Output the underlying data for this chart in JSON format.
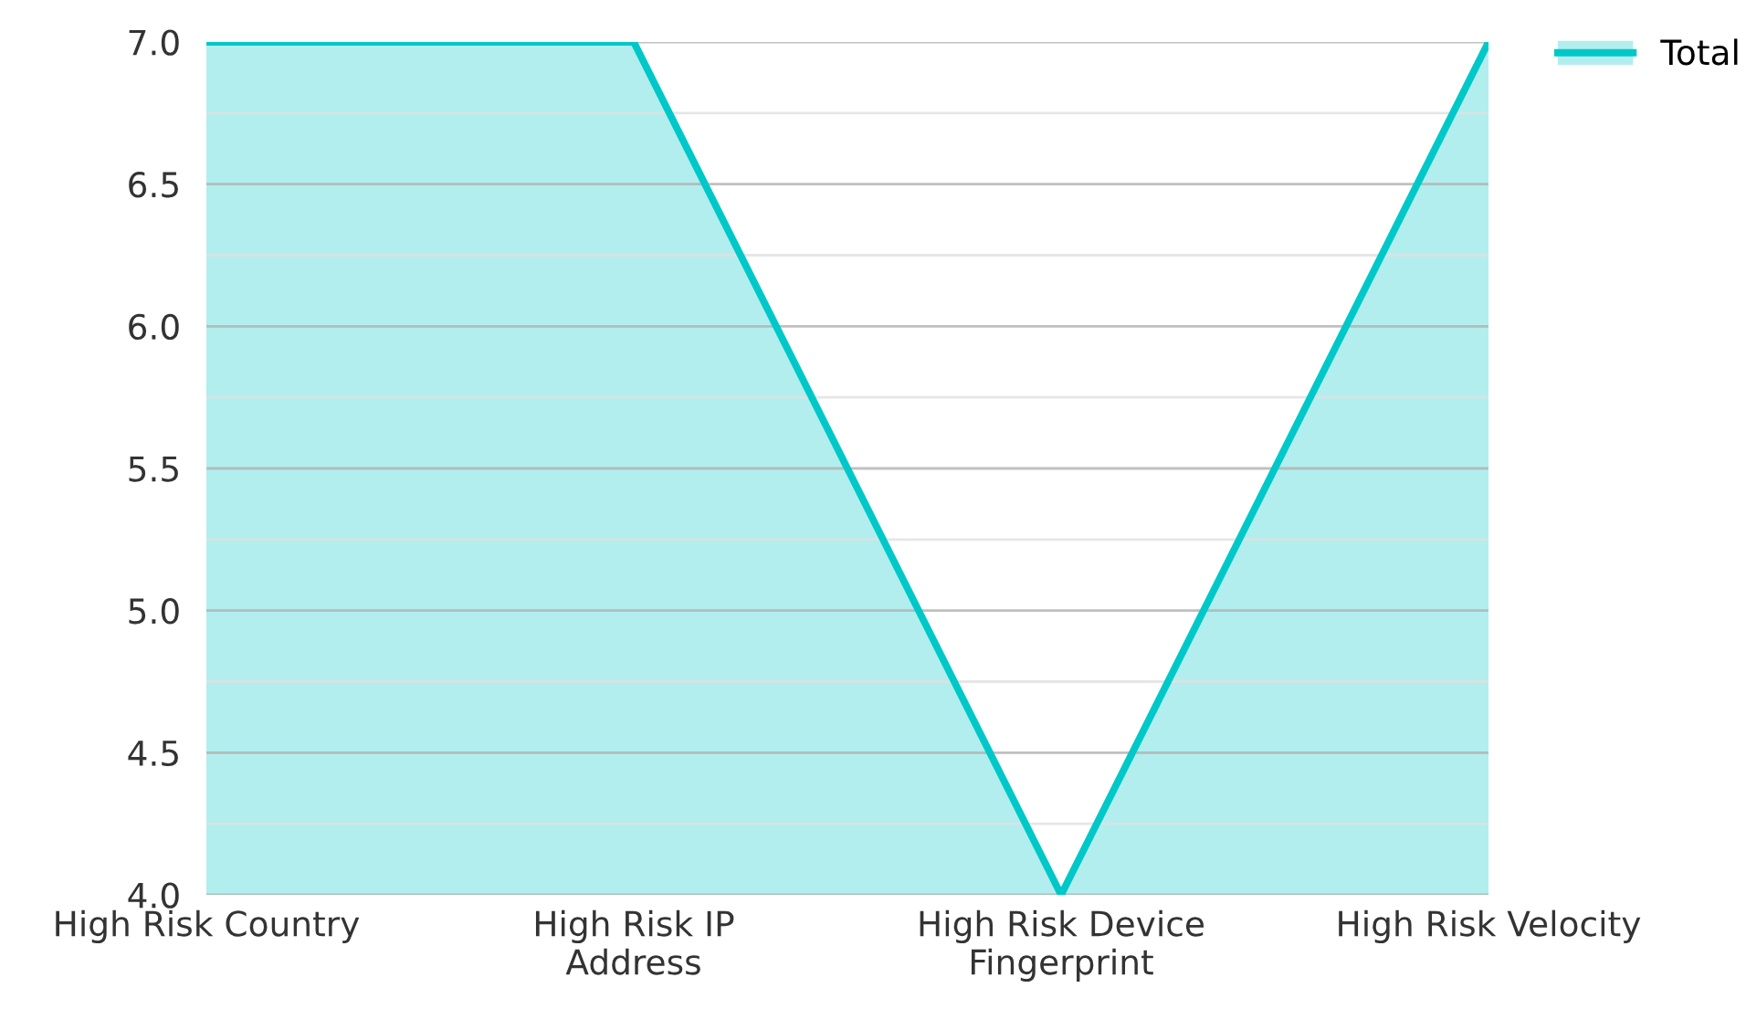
{
  "chart_data": {
    "type": "area",
    "categories": [
      "High Risk Country",
      "High Risk IP\nAddress",
      "High Risk Device\nFingerprint",
      "High Risk Velocity"
    ],
    "series": [
      {
        "name": "Total",
        "color": "#00c8c8",
        "values": [
          7,
          7,
          4,
          7
        ]
      }
    ],
    "ylim": [
      4,
      7
    ],
    "yticks": [
      {
        "value": 4,
        "label": "4.0"
      },
      {
        "value": 4.25,
        "label": null
      },
      {
        "value": 4.5,
        "label": "4.5"
      },
      {
        "value": 4.75,
        "label": null
      },
      {
        "value": 5,
        "label": "5.0"
      },
      {
        "value": 5.25,
        "label": null
      },
      {
        "value": 5.5,
        "label": "5.5"
      },
      {
        "value": 5.75,
        "label": null
      },
      {
        "value": 6,
        "label": "6.0"
      },
      {
        "value": 6.25,
        "label": null
      },
      {
        "value": 6.5,
        "label": "6.5"
      },
      {
        "value": 6.75,
        "label": null
      },
      {
        "value": 7,
        "label": "7.0"
      }
    ],
    "grid": "y",
    "legend": "top right"
  }
}
